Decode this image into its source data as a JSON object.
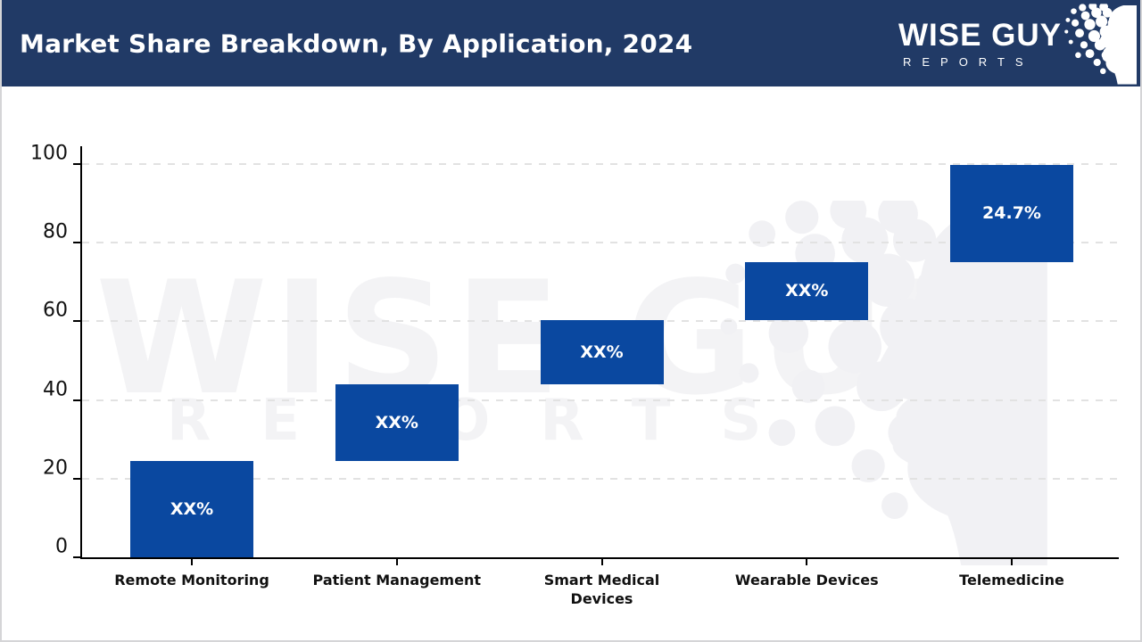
{
  "header": {
    "title": "Market Share Breakdown, By Application, 2024",
    "logo_line1": "WISE GUY",
    "logo_line2": "REPORTS"
  },
  "watermark": {
    "line1": "WISE GUY",
    "line2": "REPORTS"
  },
  "colors": {
    "header_bg": "#213A66",
    "bar_blue": "#0A48A0",
    "bar_label": "#ffffff",
    "grid": "#e2e2e2",
    "axis": "#000000",
    "watermark": "#f3f3f5"
  },
  "chart_data": {
    "type": "bar",
    "subtype": "waterfall",
    "title": "Market Share Breakdown, By Application, 2024",
    "xlabel": "",
    "ylabel": "",
    "ylim": [
      0,
      105
    ],
    "yticks": [
      0,
      20,
      40,
      60,
      80,
      100
    ],
    "grid": "dashed horizontal",
    "legend": "none",
    "categories": [
      "Remote Monitoring",
      "Patient Management",
      "Smart Medical Devices",
      "Wearable Devices",
      "Telemedicine"
    ],
    "tick_labels": [
      "Remote Monitoring",
      "Patient Management",
      "Smart Medical\nDevices",
      "Wearable Devices",
      "Telemedicine"
    ],
    "bars": [
      {
        "category": "Remote Monitoring",
        "start": 0,
        "end": 24.4,
        "height": 24.4,
        "label": "XX%"
      },
      {
        "category": "Patient Management",
        "start": 24.4,
        "end": 44.0,
        "height": 19.6,
        "label": "XX%"
      },
      {
        "category": "Smart Medical Devices",
        "start": 44.0,
        "end": 60.4,
        "height": 16.4,
        "label": "XX%"
      },
      {
        "category": "Wearable Devices",
        "start": 60.4,
        "end": 75.1,
        "height": 14.7,
        "label": "XX%"
      },
      {
        "category": "Telemedicine",
        "start": 75.1,
        "end": 99.8,
        "height": 24.7,
        "label": "24.7%"
      }
    ]
  }
}
